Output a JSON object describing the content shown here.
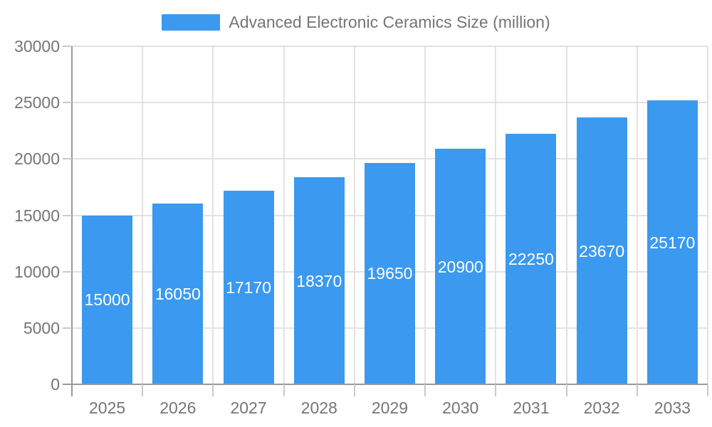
{
  "chart_data": {
    "type": "bar",
    "title": "",
    "legend": "Advanced Electronic Ceramics Size (million)",
    "legend_position": "top-center",
    "categories": [
      "2025",
      "2026",
      "2027",
      "2028",
      "2029",
      "2030",
      "2031",
      "2032",
      "2033"
    ],
    "values": [
      15000,
      16050,
      17170,
      18370,
      19650,
      20900,
      22250,
      23670,
      25170
    ],
    "value_labels": [
      "15000",
      "16050",
      "17170",
      "18370",
      "19650",
      "20900",
      "22250",
      "23670",
      "25170"
    ],
    "xlabel": "",
    "ylabel": "",
    "ylim": [
      0,
      30000
    ],
    "y_tick_step": 5000,
    "y_ticks": [
      0,
      5000,
      10000,
      15000,
      20000,
      25000,
      30000
    ],
    "y_tick_labels": [
      "0",
      "5000",
      "10000",
      "15000",
      "20000",
      "25000",
      "30000"
    ],
    "grid": true,
    "colors": {
      "bar": "#3B99EF",
      "grid": "#E2E2E2",
      "axis": "#999999",
      "tick": "#C9C9C9",
      "text": "#757575",
      "value_label": "#FFFFFF",
      "background": "#FFFFFF"
    }
  }
}
